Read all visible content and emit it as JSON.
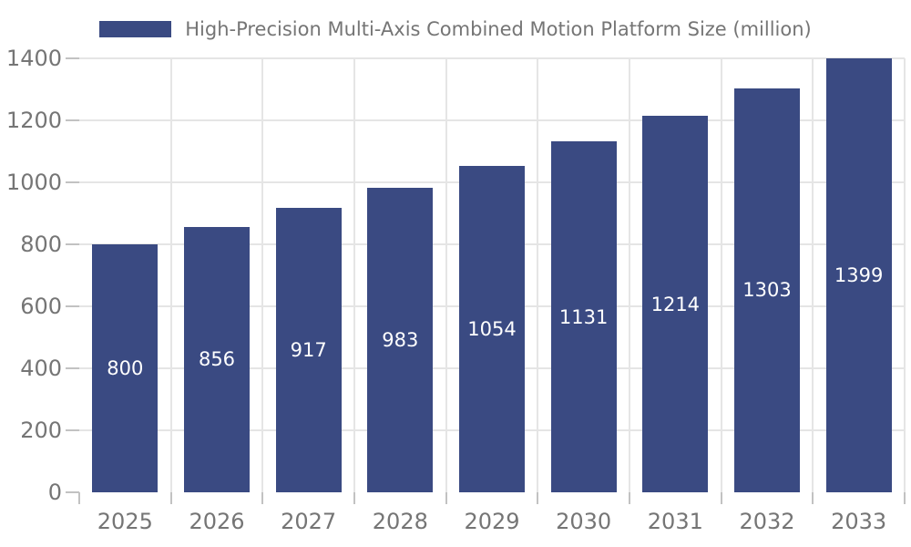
{
  "legend": {
    "label": "High-Precision Multi-Axis Combined Motion Platform Size (million)"
  },
  "chart_data": {
    "type": "bar",
    "title": "High-Precision Multi-Axis Combined Motion Platform Size (million)",
    "categories": [
      "2025",
      "2026",
      "2027",
      "2028",
      "2029",
      "2030",
      "2031",
      "2032",
      "2033"
    ],
    "values": [
      800,
      856,
      917,
      983,
      1054,
      1131,
      1214,
      1303,
      1399
    ],
    "value_labels": [
      "800",
      "856",
      "917",
      "983",
      "1054",
      "1131",
      "1214",
      "1303",
      "1399"
    ],
    "xlabel": "",
    "ylabel": "",
    "ylim": [
      0,
      1400
    ],
    "yticks": [
      0,
      200,
      400,
      600,
      800,
      1000,
      1200,
      1400
    ],
    "grid": "both",
    "legend_position": "top center",
    "value_label_position": "inside middle",
    "colors": {
      "bar": "#3A4A82",
      "bar_value_text": "#ffffff",
      "axis_text": "#757575",
      "gridline": "#e5e5e5",
      "axis_line": "#c2c2c2",
      "background": "#ffffff"
    }
  }
}
